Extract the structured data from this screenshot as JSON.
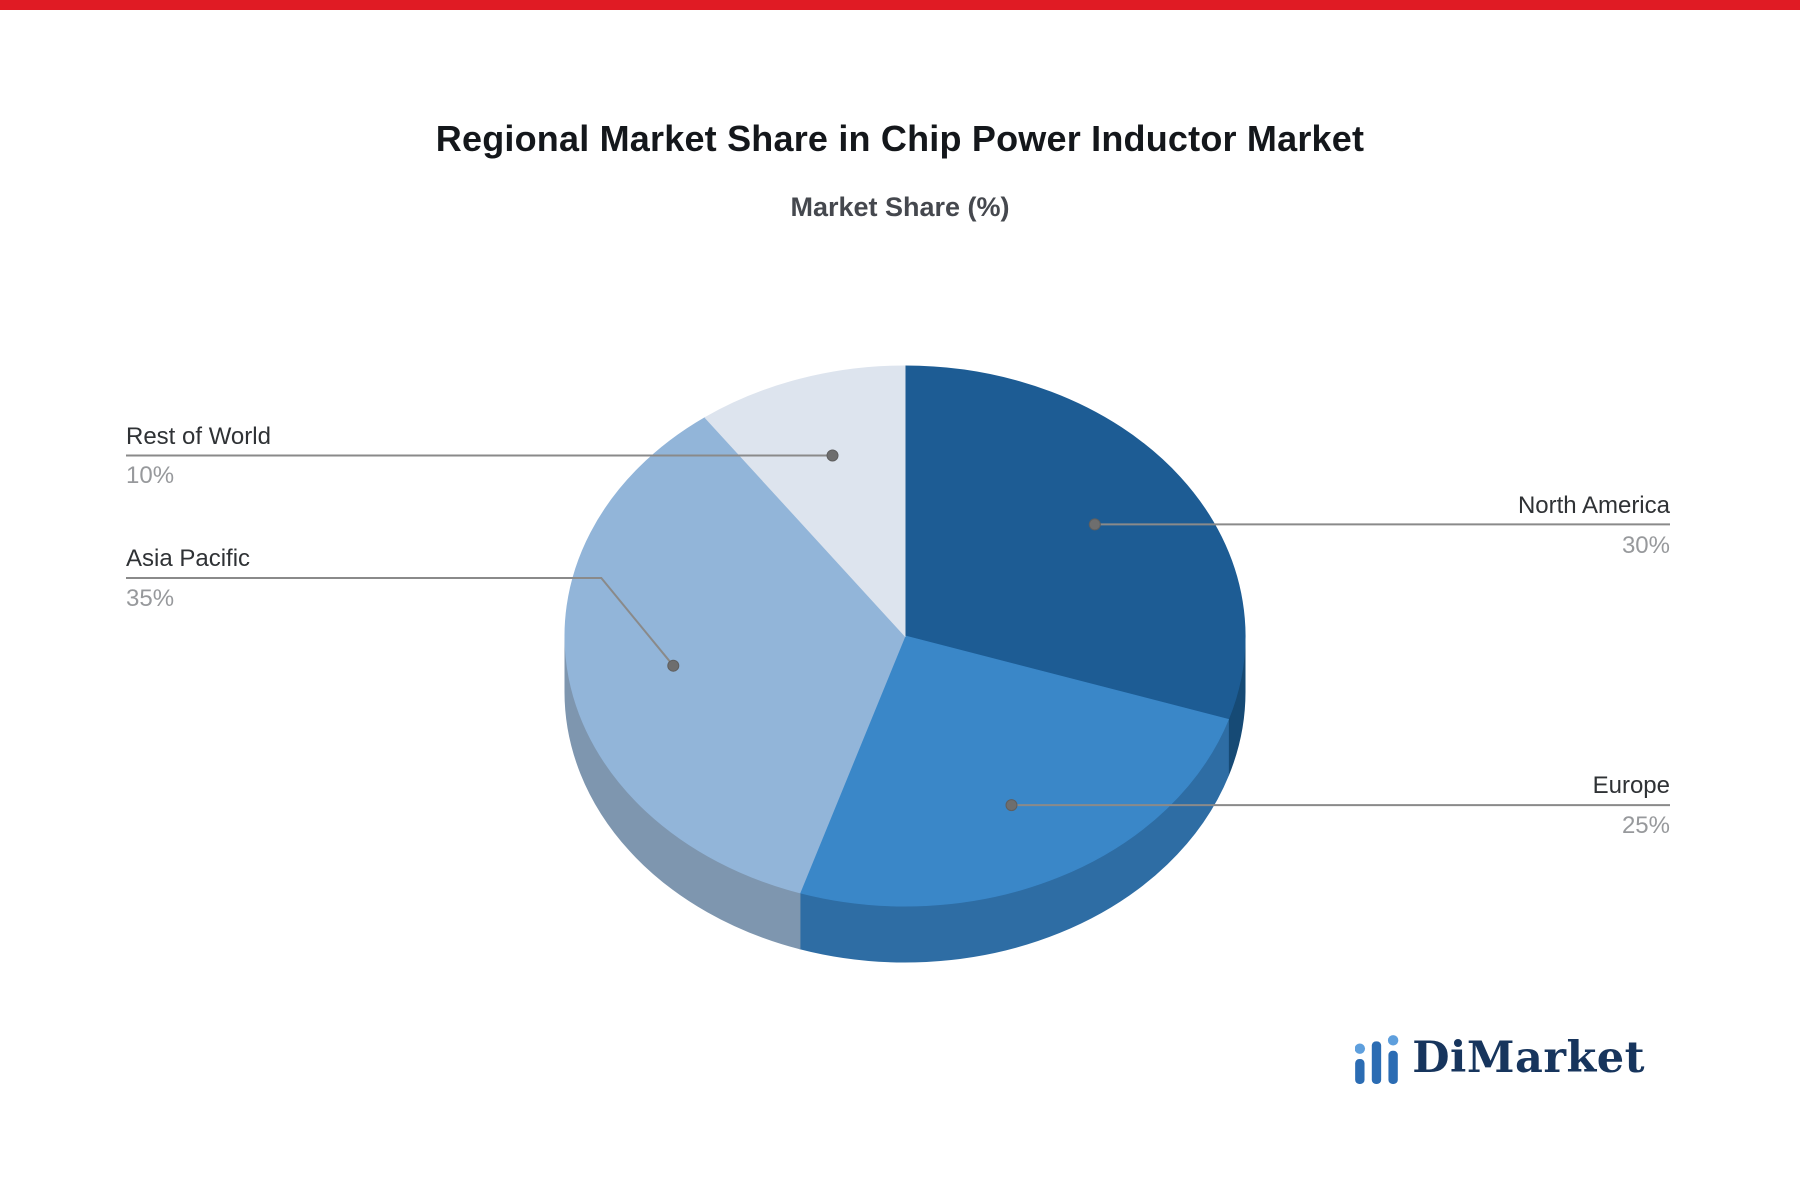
{
  "page": {
    "top_bar_color": "#e01b24",
    "background": "#ffffff",
    "connector_color": "#8a8a8a",
    "connector_dot_color": "#6e6e6e",
    "label_color": "#2f3235",
    "pct_color": "#97999c"
  },
  "header": {
    "title": "Regional Market Share in Chip Power Inductor Market",
    "subtitle": "Market Share (%)"
  },
  "chart_data": {
    "type": "pie",
    "style": "3d",
    "title": "Regional Market Share in Chip Power Inductor Market",
    "subtitle": "Market Share (%)",
    "unit": "%",
    "start_angle_deg": 0,
    "direction": "clockwise",
    "legend_position": "connector-labels",
    "slices": [
      {
        "label": "North America",
        "value": 30,
        "pct_label": "30%",
        "color": "#1d5c94",
        "side_color": "#164a75"
      },
      {
        "label": "Europe",
        "value": 25,
        "pct_label": "25%",
        "color": "#3a87c8",
        "side_color": "#2e6da4"
      },
      {
        "label": "Asia Pacific",
        "value": 35,
        "pct_label": "35%",
        "color": "#92b5d9",
        "side_color": "#7e96af"
      },
      {
        "label": "Rest of World",
        "value": 10,
        "pct_label": "10%",
        "color": "#dde4ee",
        "side_color": "#bac5d6"
      }
    ]
  },
  "branding": {
    "logo_text": "DiMarket",
    "logo_icon": "bar-chart-icon",
    "logo_text_color": "#17355d",
    "logo_icon_bar_color": "#2b6cb3",
    "logo_icon_dot_color": "#5e9fdd"
  }
}
